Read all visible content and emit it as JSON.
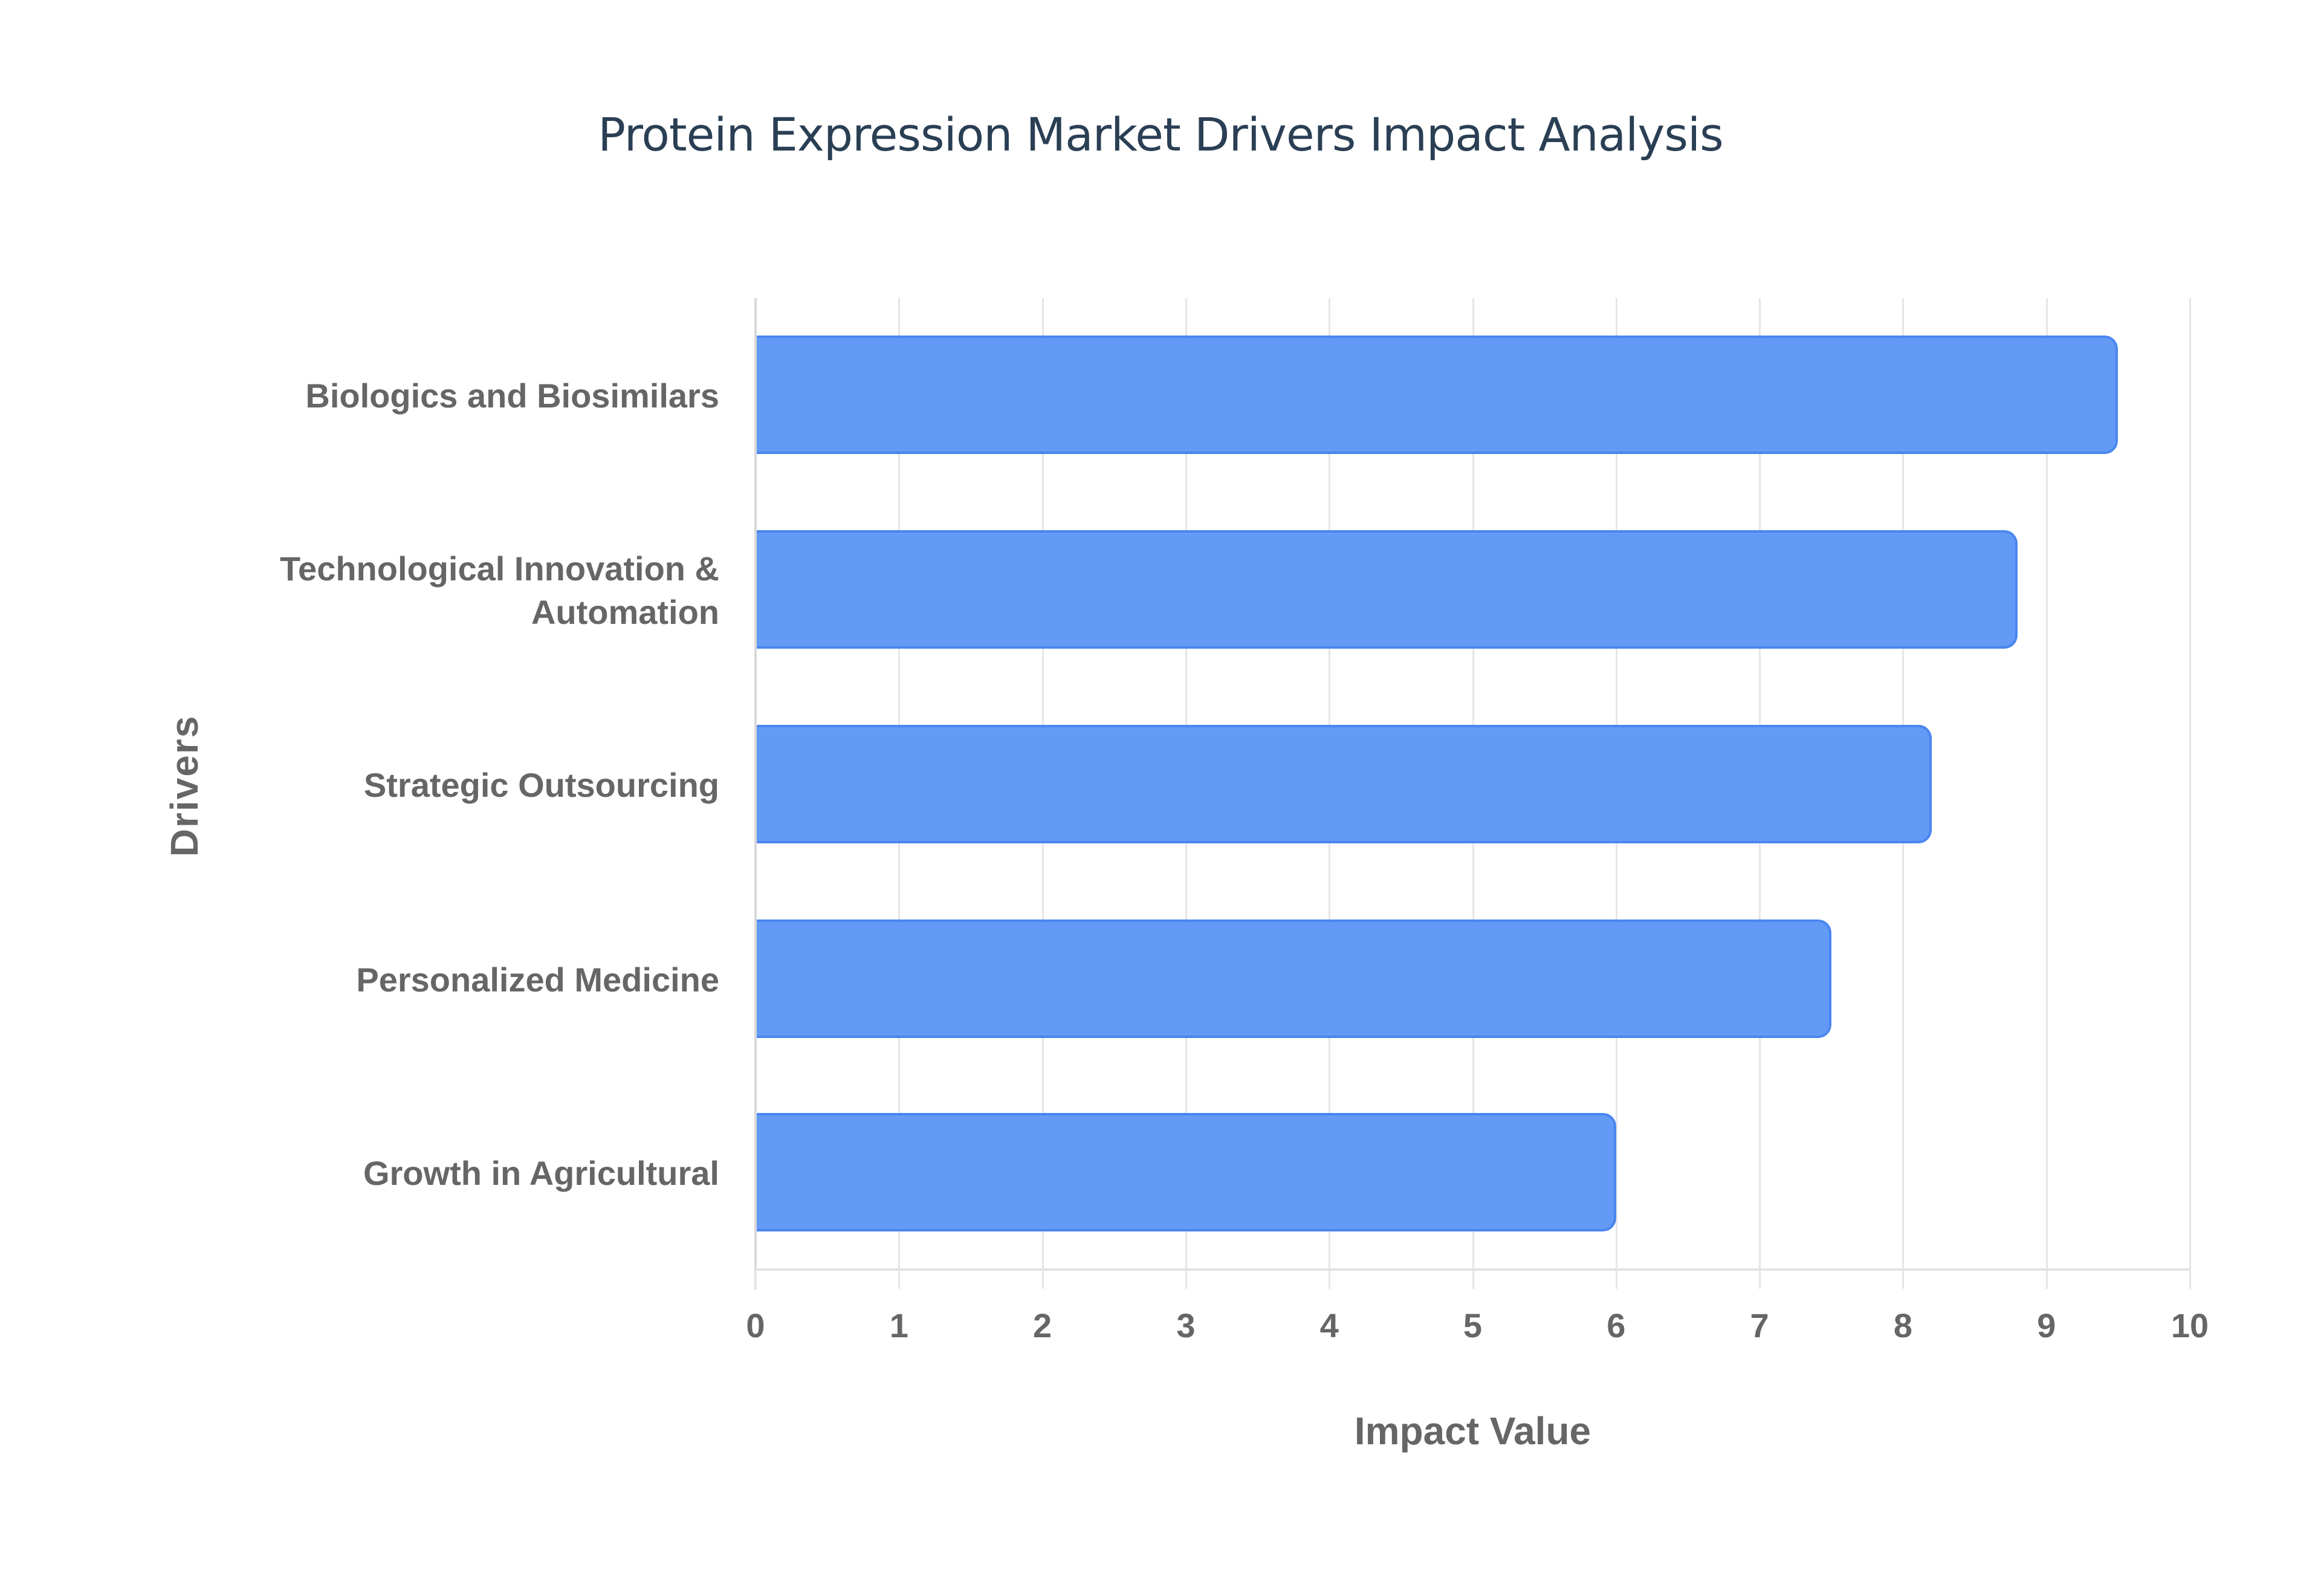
{
  "chart_data": {
    "type": "bar",
    "orientation": "horizontal",
    "title": "Protein Expression Market Drivers Impact Analysis",
    "xlabel": "Impact Value",
    "ylabel": "Drivers",
    "categories": [
      "Biologics and Biosimilars",
      "Technological Innovation & Automation",
      "Strategic Outsourcing",
      "Personalized Medicine",
      "Growth in Agricultural"
    ],
    "values": [
      9.5,
      8.8,
      8.2,
      7.5,
      6.0
    ],
    "xlim": [
      0,
      10
    ],
    "xticks": [
      "0",
      "1",
      "2",
      "3",
      "4",
      "5",
      "6",
      "7",
      "8",
      "9",
      "10"
    ],
    "grid": true,
    "legend": "none",
    "bar_color": "#639af5",
    "bar_border_color": "#4a86f0"
  },
  "labels": {
    "cat0": "Biologics and Biosimilars",
    "cat1_line1": "Technological Innovation &",
    "cat1_line2": "Automation",
    "cat2": "Strategic Outsourcing",
    "cat3": "Personalized Medicine",
    "cat4": "Growth in Agricultural"
  }
}
